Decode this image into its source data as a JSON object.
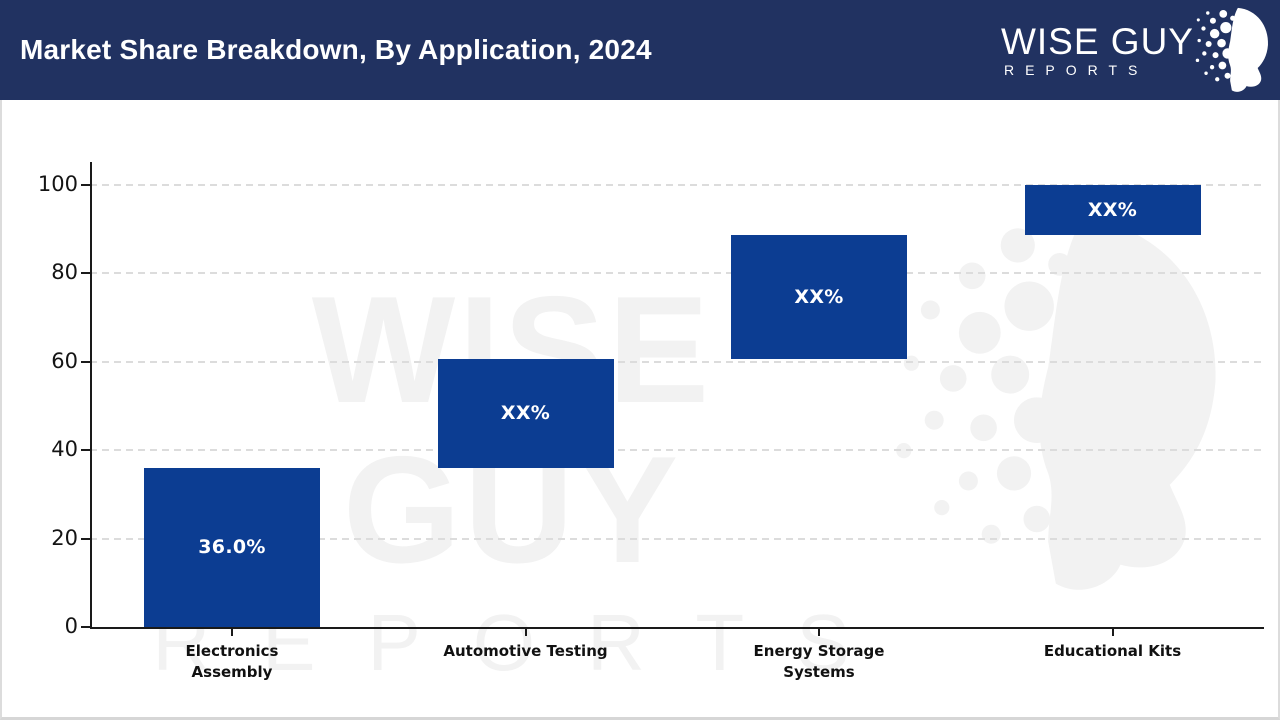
{
  "header": {
    "title": "Market Share Breakdown, By Application, 2024",
    "brand_line1": "WISE GUY",
    "brand_line2": "REPORTS",
    "bg_color": "#213261",
    "text_color": "#ffffff"
  },
  "watermark": {
    "line1": "WISE GUY",
    "line2": "REPORTS"
  },
  "chart_data": {
    "type": "bar",
    "subtype": "waterfall-stacked-percent",
    "title": "Market Share Breakdown, By Application, 2024",
    "xlabel": "",
    "ylabel": "",
    "ylim": [
      0,
      104.5
    ],
    "yticks": [
      0,
      20,
      40,
      60,
      80,
      100
    ],
    "grid": true,
    "legend": false,
    "bar_color": "#0c3d92",
    "value_label_color": "#ffffff",
    "categories": [
      "Electronics Assembly",
      "Automotive Testing",
      "Energy Storage Systems",
      "Educational Kits"
    ],
    "category_lines": [
      [
        "Electronics",
        "Assembly"
      ],
      [
        "Automotive Testing"
      ],
      [
        "Energy Storage",
        "Systems"
      ],
      [
        "Educational Kits"
      ]
    ],
    "segments": [
      {
        "category": "Electronics Assembly",
        "start": 0,
        "end": 36,
        "label": "36.0%"
      },
      {
        "category": "Automotive Testing",
        "start": 36,
        "end": 60.5,
        "label": "XX%"
      },
      {
        "category": "Energy Storage Systems",
        "start": 60.5,
        "end": 88.5,
        "label": "XX%"
      },
      {
        "category": "Educational Kits",
        "start": 88.5,
        "end": 100,
        "label": "XX%"
      }
    ]
  }
}
